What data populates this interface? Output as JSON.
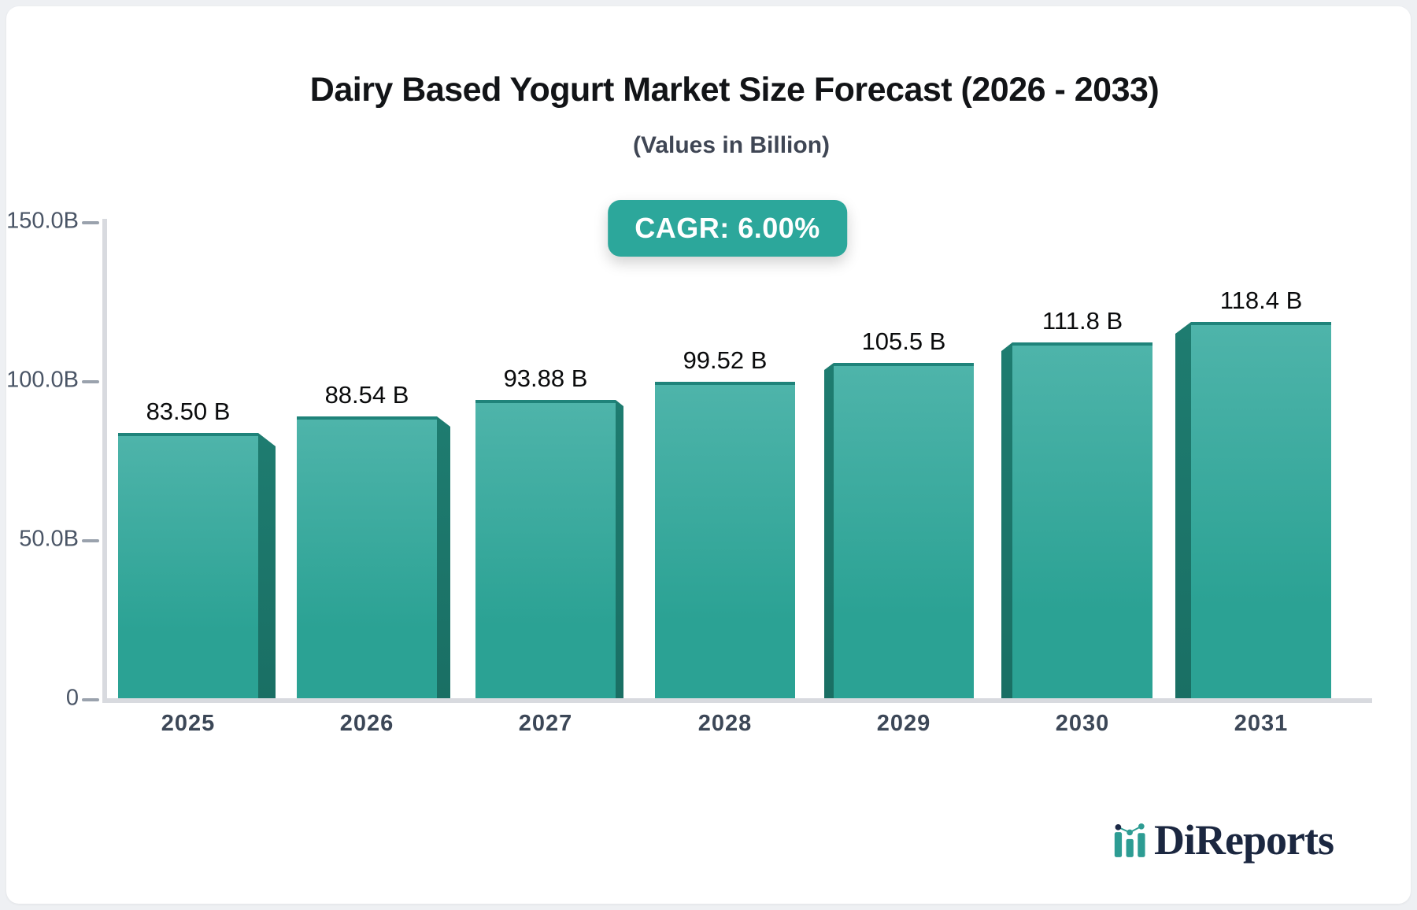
{
  "header": {
    "title": "Dairy Based Yogurt Market Size Forecast (2026 - 2033)",
    "subtitle": "(Values in Billion)"
  },
  "badge": {
    "label": "CAGR: 6.00%",
    "background_color": "#2ca79b",
    "text_color": "#ffffff"
  },
  "chart_data": {
    "type": "bar",
    "title": "Dairy Based Yogurt Market Size Forecast (2026 - 2033)",
    "subtitle": "(Values in Billion)",
    "categories": [
      "2025",
      "2026",
      "2027",
      "2028",
      "2029",
      "2030",
      "2031"
    ],
    "values": [
      83.5,
      88.54,
      93.88,
      99.52,
      105.5,
      111.8,
      118.4
    ],
    "value_labels": [
      "83.50 B",
      "88.54 B",
      "93.88 B",
      "99.52 B",
      "105.5 B",
      "111.8 B",
      "118.4 B"
    ],
    "xlabel": "",
    "ylabel": "",
    "ylim": [
      0,
      150
    ],
    "y_ticks": [
      {
        "value": 150,
        "label": "150.0B"
      },
      {
        "value": 100,
        "label": "100.0B"
      },
      {
        "value": 50,
        "label": "50.0B"
      },
      {
        "value": 0,
        "label": "0"
      }
    ],
    "grid": false,
    "legend": "none",
    "style_3d": true,
    "colors": {
      "bar_face_top": "#4eb4aa",
      "bar_face_bottom": "#2ba294",
      "bar_top_edge": "#1f837a",
      "bar_side_face": "#1e7c70",
      "axis_line": "#d8dadf",
      "tick_text": "#4a5566",
      "category_text": "#3c4757",
      "value_text": "#0a0b0c"
    }
  },
  "logo": {
    "text": "DiReports",
    "icon": "bar-chart-trend-icon",
    "text_color": "#1b2740",
    "accent_color": "#2d9c93"
  }
}
